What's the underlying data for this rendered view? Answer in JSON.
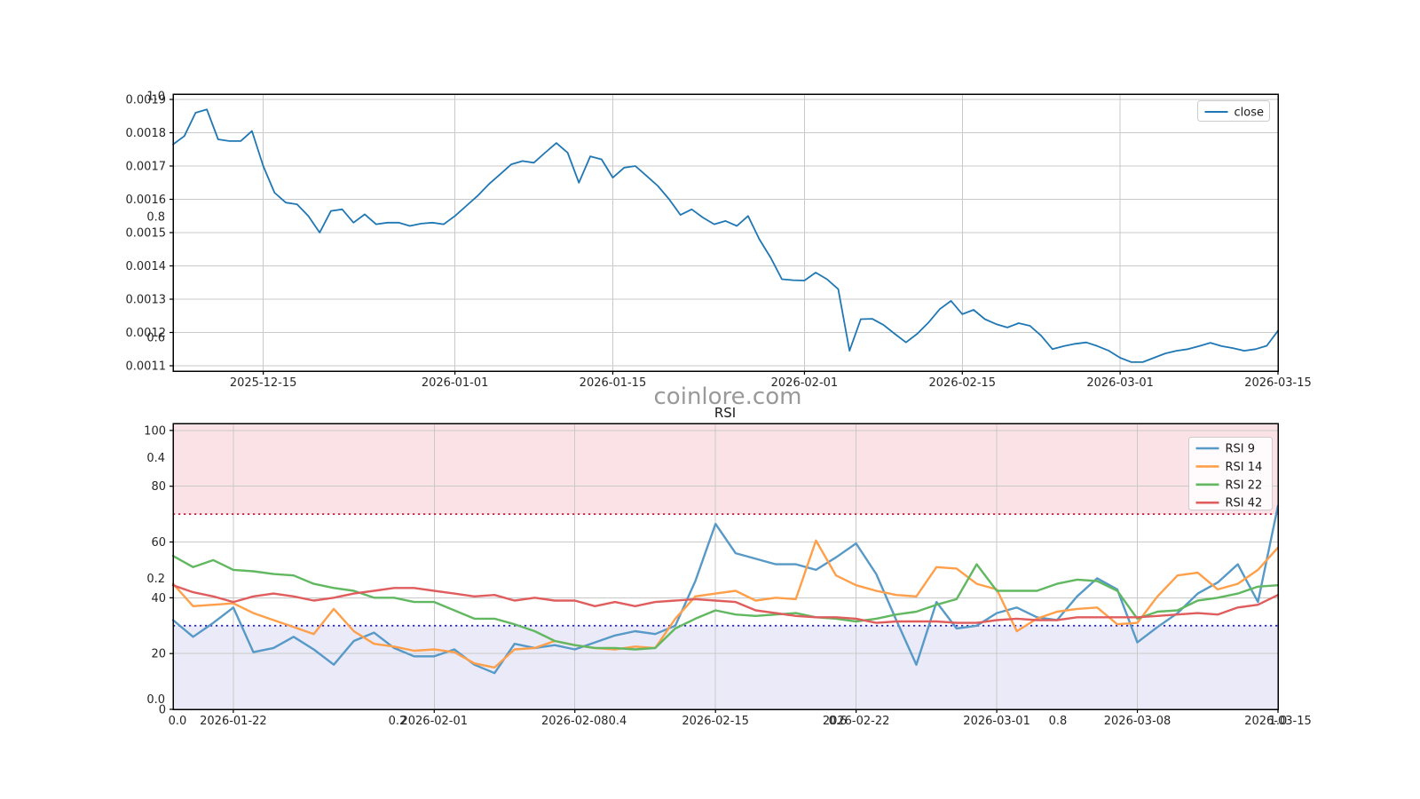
{
  "watermark": "coinlore.com",
  "overlay_axis": {
    "x_tick_labels": [
      "0.0",
      "0.2",
      "0.4",
      "0.6",
      "0.8",
      "1.0"
    ],
    "y_tick_labels": [
      "1.0",
      "0.8",
      "0.6",
      "0.4",
      "0.2",
      "0.0"
    ]
  },
  "colors": {
    "background": "#ffffff",
    "grid": "#c9c9c9",
    "spine": "#000000",
    "tick_label": "#262626",
    "watermark": "#999999",
    "price_line": "#1f77b4",
    "overbought_line": "#dc143c",
    "oversold_line": "#2222cc",
    "overbought_band": "rgba(220,20,60,0.12)",
    "oversold_band": "rgba(45,45,200,0.10)",
    "legend_bg": "rgba(255,255,255,0.85)",
    "legend_border": "#cccccc"
  },
  "chart_data": [
    {
      "id": "price",
      "type": "line",
      "title": "",
      "legend": [
        "close"
      ],
      "legend_position": "upper right",
      "grid": true,
      "ylim": [
        0.001084,
        0.001916
      ],
      "y_ticks": [
        0.0011,
        0.0012,
        0.0013,
        0.0014,
        0.0015,
        0.0016,
        0.0017,
        0.0018,
        0.0019
      ],
      "x_ticks": [
        "2025-12-15",
        "2026-01-01",
        "2026-01-15",
        "2026-02-01",
        "2026-02-15",
        "2026-03-01",
        "2026-03-15"
      ],
      "x": [
        "2025-12-07",
        "2025-12-08",
        "2025-12-09",
        "2025-12-10",
        "2025-12-11",
        "2025-12-12",
        "2025-12-13",
        "2025-12-14",
        "2025-12-15",
        "2025-12-16",
        "2025-12-17",
        "2025-12-18",
        "2025-12-19",
        "2025-12-20",
        "2025-12-21",
        "2025-12-22",
        "2025-12-23",
        "2025-12-24",
        "2025-12-25",
        "2025-12-26",
        "2025-12-27",
        "2025-12-28",
        "2025-12-29",
        "2025-12-30",
        "2025-12-31",
        "2026-01-01",
        "2026-01-02",
        "2026-01-03",
        "2026-01-04",
        "2026-01-05",
        "2026-01-06",
        "2026-01-07",
        "2026-01-08",
        "2026-01-09",
        "2026-01-10",
        "2026-01-11",
        "2026-01-12",
        "2026-01-13",
        "2026-01-14",
        "2026-01-15",
        "2026-01-16",
        "2026-01-17",
        "2026-01-18",
        "2026-01-19",
        "2026-01-20",
        "2026-01-21",
        "2026-01-22",
        "2026-01-23",
        "2026-01-24",
        "2026-01-25",
        "2026-01-26",
        "2026-01-27",
        "2026-01-28",
        "2026-01-29",
        "2026-01-30",
        "2026-01-31",
        "2026-02-01",
        "2026-02-02",
        "2026-02-03",
        "2026-02-04",
        "2026-02-05",
        "2026-02-06",
        "2026-02-07",
        "2026-02-08",
        "2026-02-09",
        "2026-02-10",
        "2026-02-11",
        "2026-02-12",
        "2026-02-13",
        "2026-02-14",
        "2026-02-15",
        "2026-02-16",
        "2026-02-17",
        "2026-02-18",
        "2026-02-19",
        "2026-02-20",
        "2026-02-21",
        "2026-02-22",
        "2026-02-23",
        "2026-02-24",
        "2026-02-25",
        "2026-02-26",
        "2026-02-27",
        "2026-02-28",
        "2026-03-01",
        "2026-03-02",
        "2026-03-03",
        "2026-03-04",
        "2026-03-05",
        "2026-03-06",
        "2026-03-07",
        "2026-03-08",
        "2026-03-09",
        "2026-03-10",
        "2026-03-11",
        "2026-03-12",
        "2026-03-13",
        "2026-03-14",
        "2026-03-15"
      ],
      "series": [
        {
          "name": "close",
          "color": "#1f77b4",
          "values": [
            0.001765,
            0.00179,
            0.00186,
            0.00187,
            0.00178,
            0.001775,
            0.001775,
            0.001805,
            0.0017,
            0.00162,
            0.00159,
            0.001585,
            0.00155,
            0.0015,
            0.001565,
            0.00157,
            0.00153,
            0.001555,
            0.001525,
            0.00153,
            0.00153,
            0.00152,
            0.001527,
            0.00153,
            0.001525,
            0.00155,
            0.00158,
            0.00161,
            0.001645,
            0.001675,
            0.001705,
            0.001715,
            0.00171,
            0.00174,
            0.001769,
            0.00174,
            0.00165,
            0.001729,
            0.00172,
            0.001665,
            0.001695,
            0.0017,
            0.00167,
            0.00164,
            0.0016,
            0.001553,
            0.00157,
            0.001545,
            0.001525,
            0.001535,
            0.00152,
            0.00155,
            0.00148,
            0.001425,
            0.00136,
            0.001357,
            0.001356,
            0.00138,
            0.00136,
            0.00133,
            0.001145,
            0.00124,
            0.001241,
            0.001223,
            0.001196,
            0.00117,
            0.001196,
            0.00123,
            0.00127,
            0.001295,
            0.001255,
            0.001268,
            0.00124,
            0.001225,
            0.001215,
            0.001228,
            0.00122,
            0.00119,
            0.00115,
            0.001159,
            0.001166,
            0.00117,
            0.001159,
            0.001145,
            0.001124,
            0.001111,
            0.001111,
            0.001124,
            0.001137,
            0.001145,
            0.00115,
            0.001159,
            0.001169,
            0.001159,
            0.001153,
            0.001145,
            0.00115,
            0.00116,
            0.001205
          ]
        }
      ]
    },
    {
      "id": "rsi",
      "type": "line",
      "title": "RSI",
      "legend": [
        "RSI 9",
        "RSI 14",
        "RSI 22",
        "RSI 42"
      ],
      "legend_position": "upper right",
      "grid": true,
      "ylim": [
        0,
        102.5
      ],
      "y_ticks": [
        0,
        20,
        40,
        60,
        80,
        100
      ],
      "overbought": 70,
      "oversold": 30,
      "x_ticks": [
        "2026-01-22",
        "2026-02-01",
        "2026-02-08",
        "2026-02-15",
        "2026-02-22",
        "2026-03-01",
        "2026-03-08",
        "2026-03-15"
      ],
      "x": [
        "2026-01-19",
        "2026-01-20",
        "2026-01-21",
        "2026-01-22",
        "2026-01-23",
        "2026-01-24",
        "2026-01-25",
        "2026-01-26",
        "2026-01-27",
        "2026-01-28",
        "2026-01-29",
        "2026-01-30",
        "2026-01-31",
        "2026-02-01",
        "2026-02-02",
        "2026-02-03",
        "2026-02-04",
        "2026-02-05",
        "2026-02-06",
        "2026-02-07",
        "2026-02-08",
        "2026-02-09",
        "2026-02-10",
        "2026-02-11",
        "2026-02-12",
        "2026-02-13",
        "2026-02-14",
        "2026-02-15",
        "2026-02-16",
        "2026-02-17",
        "2026-02-18",
        "2026-02-19",
        "2026-02-20",
        "2026-02-21",
        "2026-02-22",
        "2026-02-23",
        "2026-02-24",
        "2026-02-25",
        "2026-02-26",
        "2026-02-27",
        "2026-02-28",
        "2026-03-01",
        "2026-03-02",
        "2026-03-03",
        "2026-03-04",
        "2026-03-05",
        "2026-03-06",
        "2026-03-07",
        "2026-03-08",
        "2026-03-09",
        "2026-03-10",
        "2026-03-11",
        "2026-03-12",
        "2026-03-13",
        "2026-03-14",
        "2026-03-15"
      ],
      "series": [
        {
          "name": "RSI 9",
          "color": "#5799c7",
          "values": [
            32,
            26,
            31,
            36.5,
            20.5,
            22,
            26,
            21.5,
            16,
            24.5,
            27.5,
            22,
            19,
            19,
            21.5,
            16,
            13,
            23.5,
            22,
            23,
            21.5,
            24,
            26.5,
            28,
            27,
            30,
            46,
            66.5,
            56,
            54,
            52,
            52,
            50,
            54.5,
            59.5,
            48.5,
            32,
            16,
            38.5,
            29,
            30,
            34.5,
            36.5,
            33,
            32,
            40.5,
            47,
            43,
            24,
            29.5,
            34.5,
            41.5,
            45.5,
            52,
            38.5,
            73
          ]
        },
        {
          "name": "RSI 14",
          "color": "#ff9f4a",
          "values": [
            45,
            37,
            37.5,
            38,
            34.5,
            32,
            29.5,
            27,
            36,
            28,
            23.5,
            22.5,
            21,
            21.5,
            20.5,
            16.5,
            15,
            21.5,
            22,
            24.5,
            23,
            22,
            21.5,
            22.5,
            22,
            32.5,
            40.5,
            41.5,
            42.5,
            39,
            40,
            39.5,
            60.5,
            48,
            44.5,
            42.5,
            41,
            40.5,
            51,
            50.5,
            45,
            43,
            28,
            32.5,
            35,
            36,
            36.5,
            30.5,
            31,
            40.5,
            48,
            49,
            43,
            45,
            50,
            58
          ]
        },
        {
          "name": "RSI 22",
          "color": "#61b861",
          "values": [
            55,
            51,
            53.5,
            50,
            49.5,
            48.5,
            48,
            45,
            43.5,
            42.5,
            40,
            40,
            38.5,
            38.5,
            35.5,
            32.5,
            32.5,
            30.5,
            28,
            24.5,
            23,
            22,
            22,
            21.5,
            22,
            29,
            32.5,
            35.5,
            34,
            33.5,
            34,
            34.5,
            33,
            32.5,
            31.5,
            32.5,
            34,
            35,
            37.5,
            39.5,
            52,
            42.5,
            42.5,
            42.5,
            45,
            46.5,
            46,
            42.5,
            32.5,
            35,
            35.5,
            39,
            40,
            41.5,
            44,
            44.5
          ]
        },
        {
          "name": "RSI 42",
          "color": "#e05d5e",
          "values": [
            44.5,
            42,
            40.5,
            38.5,
            40.5,
            41.5,
            40.5,
            39,
            40,
            41.5,
            42.5,
            43.5,
            43.5,
            42.5,
            41.5,
            40.5,
            41,
            39,
            40,
            39,
            39,
            37,
            38.5,
            37,
            38.5,
            39,
            39.5,
            39,
            38.5,
            35.5,
            34.5,
            33.5,
            33,
            33,
            32.5,
            31,
            31.5,
            31.5,
            31.5,
            31,
            31,
            32,
            32.5,
            32,
            32,
            33,
            33,
            33,
            33,
            33.5,
            34,
            34.5,
            34,
            36.5,
            37.5,
            41
          ]
        }
      ]
    }
  ]
}
